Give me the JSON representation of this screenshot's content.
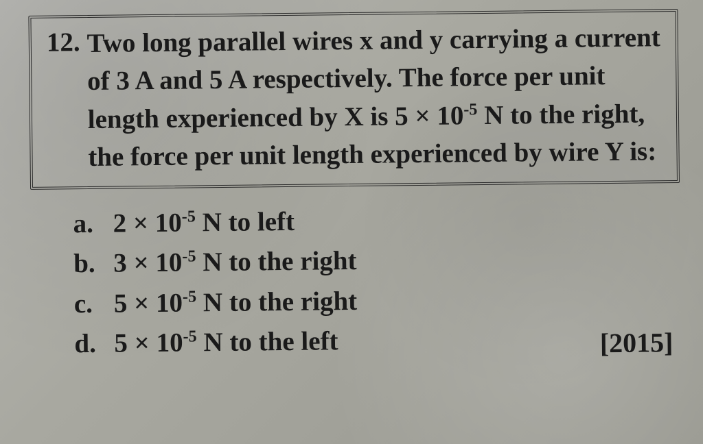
{
  "question": {
    "number": "12.",
    "text": "Two long parallel wires x and y carrying a current of 3 A and 5 A respectively. The force per unit length experienced by X is 5 × 10⁻⁵ N to the right, the force per unit length experienced by wire Y is:"
  },
  "options": {
    "a": {
      "letter": "a.",
      "text": "2 × 10⁻⁵ N to left"
    },
    "b": {
      "letter": "b.",
      "text": "3 × 10⁻⁵ N to the right"
    },
    "c": {
      "letter": "c.",
      "text": "5 × 10⁻⁵ N to the right"
    },
    "d": {
      "letter": "d.",
      "text": "5 × 10⁻⁵ N to the left"
    }
  },
  "year": "[2015]",
  "style": {
    "background_gradient": [
      "#b8b8b4",
      "#a8a8a0",
      "#989890"
    ],
    "text_color": "#1a1a1a",
    "box_border_color": "#2a2a2a",
    "question_fontsize_pt": 29,
    "option_fontsize_pt": 29,
    "font_family": "Georgia, Times New Roman, serif",
    "font_weight": 700,
    "rotation_deg": -0.6
  }
}
